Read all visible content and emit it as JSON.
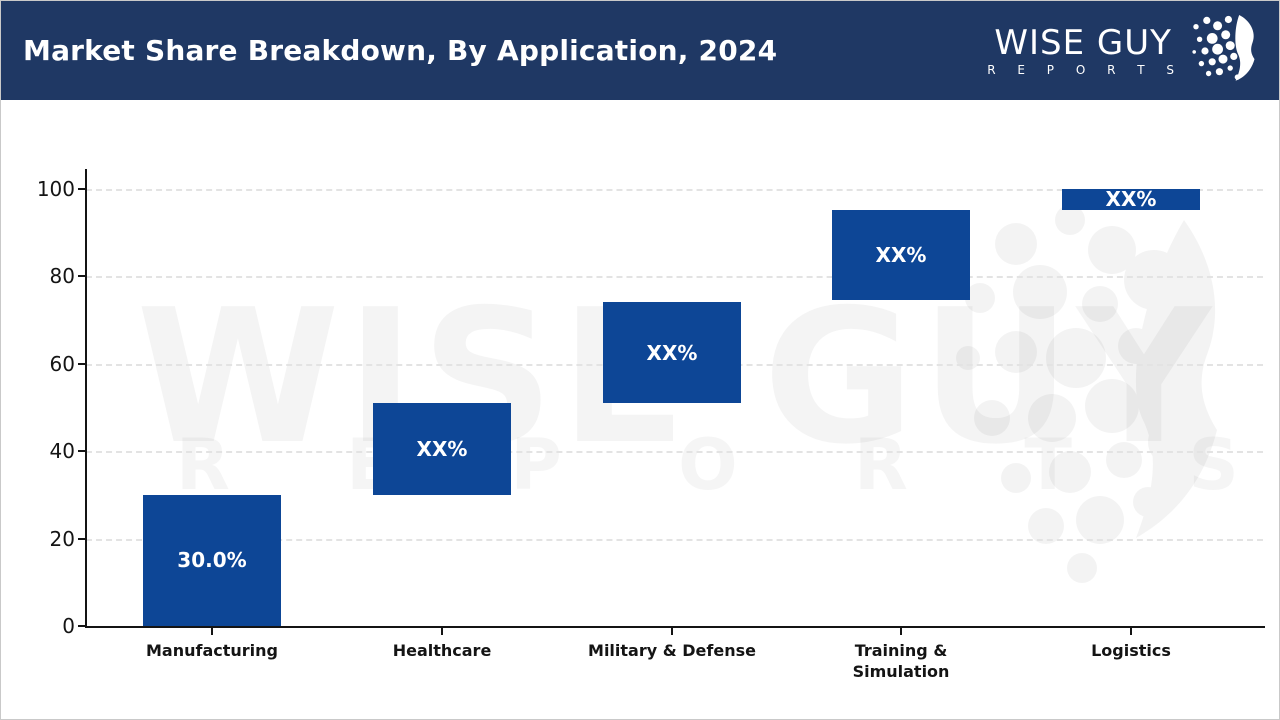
{
  "header": {
    "title": "Market Share Breakdown, By Application, 2024",
    "logo": {
      "line1": "WISE GUY",
      "line2": "R E P O R T S"
    }
  },
  "watermark": {
    "line1": "WISE GUY",
    "line2": "R E P O R T S"
  },
  "colors": {
    "header_bg": "#1f3864",
    "bar": "#0d4696",
    "bar_label": "#ffffff",
    "grid": "#e3e3e3",
    "axis": "#141414"
  },
  "chart_data": {
    "type": "bar",
    "subtype": "waterfall",
    "title": "Market Share Breakdown, By Application, 2024",
    "categories": [
      "Manufacturing",
      "Healthcare",
      "Military & Defense",
      "Training & Simulation",
      "Logistics"
    ],
    "tick_labels": [
      [
        "Manufacturing"
      ],
      [
        "Healthcare"
      ],
      [
        "Military & Defense"
      ],
      [
        "Training &",
        "Simulation"
      ],
      [
        "Logistics"
      ]
    ],
    "bars": [
      {
        "category": "Manufacturing",
        "start": 0,
        "end": 30,
        "label": "30.0%"
      },
      {
        "category": "Healthcare",
        "start": 30,
        "end": 51,
        "label": "XX%"
      },
      {
        "category": "Military & Defense",
        "start": 51,
        "end": 74,
        "label": "XX%"
      },
      {
        "category": "Training & Simulation",
        "start": 74.5,
        "end": 95,
        "label": "XX%"
      },
      {
        "category": "Logistics",
        "start": 95,
        "end": 100,
        "label": "XX%"
      }
    ],
    "ylim": [
      0,
      105
    ],
    "yticks": [
      0,
      20,
      40,
      60,
      80,
      100
    ],
    "grid": true,
    "legend": false,
    "xlabel": "",
    "ylabel": ""
  }
}
